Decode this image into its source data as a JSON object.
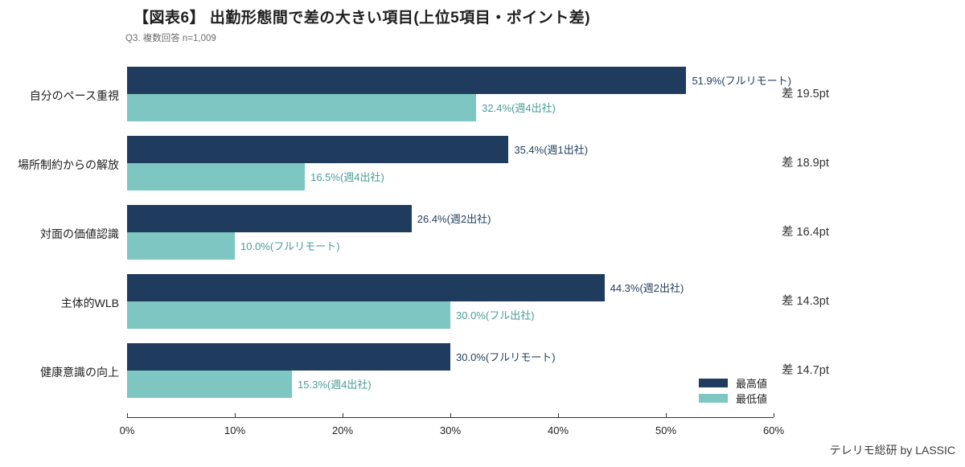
{
  "title": "【図表6】 出勤形態間で差の大きい項目(上位5項目・ポイント差)",
  "subtitle": "Q3. 複数回答  n=1,009",
  "footer": "テレリモ総研 by LASSIC",
  "colors": {
    "max_bar": "#1f3b5e",
    "min_bar": "#7dc6c1",
    "max_label_text": "#24405e",
    "min_label_text": "#4a9c98",
    "axis": "#333333"
  },
  "legend": [
    {
      "label": "最高値",
      "color": "#1f3b5e"
    },
    {
      "label": "最低値",
      "color": "#7dc6c1"
    }
  ],
  "chart_data": {
    "type": "bar",
    "orientation": "horizontal",
    "title": "【図表6】 出勤形態間で差の大きい項目(上位5項目・ポイント差)",
    "categories": [
      "自分のペース重視",
      "場所制約からの解放",
      "対面の価値認識",
      "主体的WLB",
      "健康意識の向上"
    ],
    "series": [
      {
        "name": "最高値",
        "values": [
          51.9,
          35.4,
          26.4,
          44.3,
          30.0
        ],
        "labels": [
          "51.9%(フルリモート)",
          "35.4%(週1出社)",
          "26.4%(週2出社)",
          "44.3%(週2出社)",
          "30.0%(フルリモート)"
        ]
      },
      {
        "name": "最低値",
        "values": [
          32.4,
          16.5,
          10.0,
          30.0,
          15.3
        ],
        "labels": [
          "32.4%(週4出社)",
          "16.5%(週4出社)",
          "10.0%(フルリモート)",
          "30.0%(フル出社)",
          "15.3%(週4出社)"
        ]
      }
    ],
    "diff_labels": [
      "差 19.5pt",
      "差 18.9pt",
      "差 16.4pt",
      "差 14.3pt",
      "差 14.7pt"
    ],
    "xlim": [
      0,
      60
    ],
    "x_ticks": [
      "0%",
      "10%",
      "20%",
      "30%",
      "40%",
      "50%",
      "60%"
    ],
    "legend_position": "lower right",
    "grid": false
  }
}
